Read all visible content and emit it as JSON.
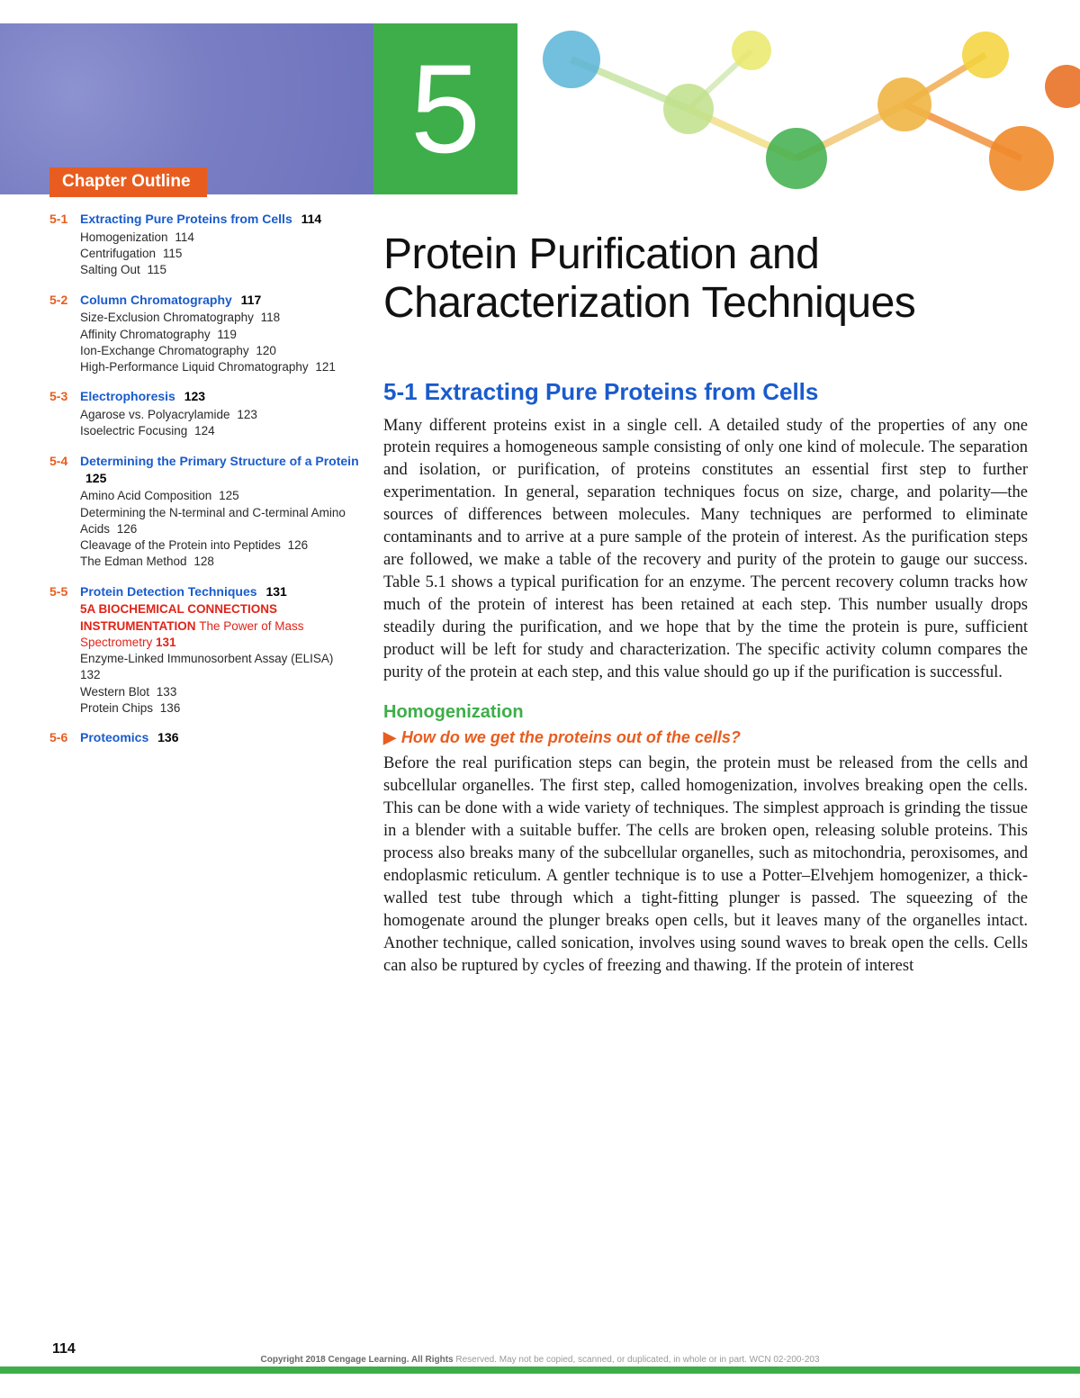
{
  "chapter": {
    "number": "5",
    "title": "Protein Purification and Characterization Techniques",
    "page_number": "114"
  },
  "outline": {
    "tab_label": "Chapter Outline",
    "sections": [
      {
        "num": "5-1",
        "title": "Extracting Pure Proteins from Cells",
        "page": "114",
        "subs": [
          {
            "t": "Homogenization",
            "p": "114"
          },
          {
            "t": "Centrifugation",
            "p": "115"
          },
          {
            "t": "Salting Out",
            "p": "115"
          }
        ]
      },
      {
        "num": "5-2",
        "title": "Column Chromatography",
        "page": "117",
        "subs": [
          {
            "t": "Size-Exclusion Chromatography",
            "p": "118"
          },
          {
            "t": "Affinity Chromatography",
            "p": "119"
          },
          {
            "t": "Ion-Exchange Chromatography",
            "p": "120"
          },
          {
            "t": "High-Performance Liquid Chromatography",
            "p": "121"
          }
        ]
      },
      {
        "num": "5-3",
        "title": "Electrophoresis",
        "page": "123",
        "subs": [
          {
            "t": "Agarose vs. Polyacrylamide",
            "p": "123"
          },
          {
            "t": "Isoelectric Focusing",
            "p": "124"
          }
        ]
      },
      {
        "num": "5-4",
        "title": "Determining the Primary Structure of a Protein",
        "page": "125",
        "subs": [
          {
            "t": "Amino Acid Composition",
            "p": "125"
          },
          {
            "t": "Determining the N-terminal and C-terminal Amino Acids",
            "p": "126"
          },
          {
            "t": "Cleavage of the Protein into Peptides",
            "p": "126"
          },
          {
            "t": "The Edman Method",
            "p": "128"
          }
        ]
      },
      {
        "num": "5-5",
        "title": "Protein Detection Techniques",
        "page": "131",
        "callout": {
          "label_line1": "5A  BIOCHEMICAL CONNECTIONS",
          "label_line2": "INSTRUMENTATION",
          "label_topic": "The Power of Mass Spectrometry",
          "page": "131"
        },
        "subs": [
          {
            "t": "Enzyme-Linked Immunosorbent Assay (ELISA)",
            "p": "132"
          },
          {
            "t": "Western Blot",
            "p": "133"
          },
          {
            "t": "Protein Chips",
            "p": "136"
          }
        ]
      },
      {
        "num": "5-6",
        "title": "Proteomics",
        "page": "136",
        "subs": []
      }
    ]
  },
  "body": {
    "sec_num": "5-1",
    "sec_title": "Extracting Pure Proteins from Cells",
    "para1": "Many different proteins exist in a single cell. A detailed study of the properties of any one protein requires a homogeneous sample consisting of only one kind of molecule. The separation and isolation, or purification, of proteins constitutes an essential first step to further experimentation. In general, separation techniques focus on size, charge, and polarity—the sources of differences between molecules. Many techniques are performed to eliminate contaminants and to arrive at a pure sample of the protein of interest. As the purification steps are followed, we make a table of the recovery and purity of the protein to gauge our success. Table 5.1 shows a typical purification for an enzyme. The percent recovery column tracks how much of the protein of interest has been retained at each step. This number usually drops steadily during the purification, and we hope that by the time the protein is pure, sufficient product will be left for study and characterization. The specific activity column compares the purity of the protein at each step, and this value should go up if the purification is successful.",
    "subsec_title": "Homogenization",
    "question": "How do we get the proteins out of the cells?",
    "para2": "Before the real purification steps can begin, the protein must be released from the cells and subcellular organelles. The first step, called homogenization, involves breaking open the cells. This can be done with a wide variety of techniques. The simplest approach is grinding the tissue in a blender with a suitable buffer. The cells are broken open, releasing soluble proteins. This process also breaks many of the subcellular organelles, such as mitochondria, peroxisomes, and endoplasmic reticulum. A gentler technique is to use a Potter–Elvehjem homogenizer, a thick-walled test tube through which a tight-fitting plunger is passed. The squeezing of the homogenate around the plunger breaks open cells, but it leaves many of the organelles intact. Another technique, called sonication, involves using sound waves to break open the cells. Cells can also be ruptured by cycles of freezing and thawing. If the protein of interest"
  },
  "footer": {
    "copyright_bold": "Copyright 2018 Cengage Learning. All Rights",
    "copyright_rest": " Reserved. May not be copied, scanned, or duplicated, in whole or in part.  WCN 02-200-203"
  },
  "colors": {
    "orange": "#e85d1f",
    "blue": "#1a5bcc",
    "green": "#3eae4a",
    "red": "#e02418",
    "purple": "#7a7fc4"
  }
}
